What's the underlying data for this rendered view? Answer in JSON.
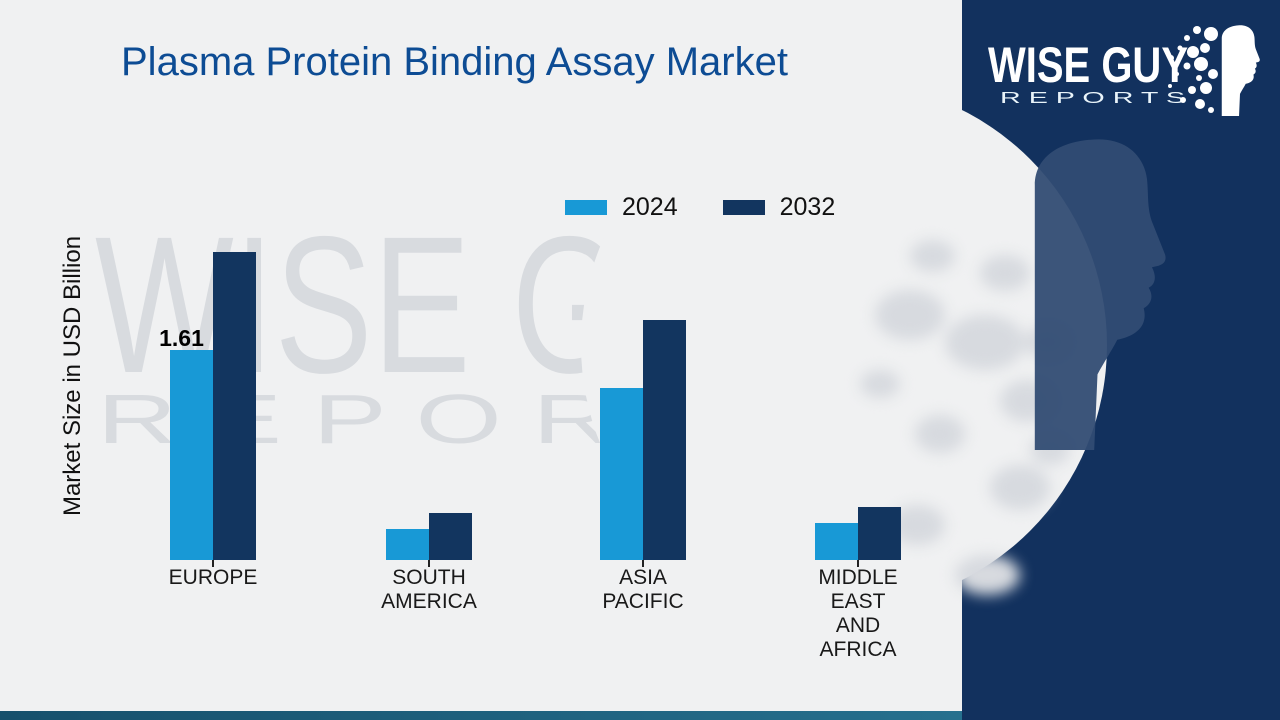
{
  "title": "Plasma Protein Binding Assay Market",
  "ylabel": "Market Size in USD Billion",
  "colors": {
    "background": "#f0f1f2",
    "title": "#0d4c94",
    "series_2024": "#1899d6",
    "series_2032": "#12355f",
    "navy_band": "#12315e",
    "watermark": "#d8dbdf",
    "bottom_bar_left": "#16506c",
    "bottom_bar_right": "#26708e"
  },
  "logo": {
    "line1": "WISE GUY",
    "line2": "R E P O R T S"
  },
  "watermark": {
    "line1": "WISE GUY",
    "line2": "R E P O R T S"
  },
  "chart_data": {
    "type": "bar",
    "title": "Plasma Protein Binding Assay Market",
    "xlabel": "",
    "ylabel": "Market Size in USD Billion",
    "ylim": [
      0,
      2.5
    ],
    "grid": false,
    "legend_position": "top-center",
    "categories": [
      "EUROPE",
      "SOUTH AMERICA",
      "ASIA PACIFIC",
      "MIDDLE EAST AND AFRICA"
    ],
    "category_label_lines": [
      [
        "EUROPE"
      ],
      [
        "SOUTH",
        "AMERICA"
      ],
      [
        "ASIA",
        "PACIFIC"
      ],
      [
        "MIDDLE",
        "EAST",
        "AND",
        "AFRICA"
      ]
    ],
    "series": [
      {
        "name": "2024",
        "color": "#1899d6",
        "values": [
          1.61,
          0.24,
          1.32,
          0.28
        ]
      },
      {
        "name": "2032",
        "color": "#12355f",
        "values": [
          2.36,
          0.36,
          1.84,
          0.41
        ]
      }
    ],
    "annotations": [
      {
        "category": "EUROPE",
        "series": "2024",
        "text": "1.61"
      }
    ]
  }
}
